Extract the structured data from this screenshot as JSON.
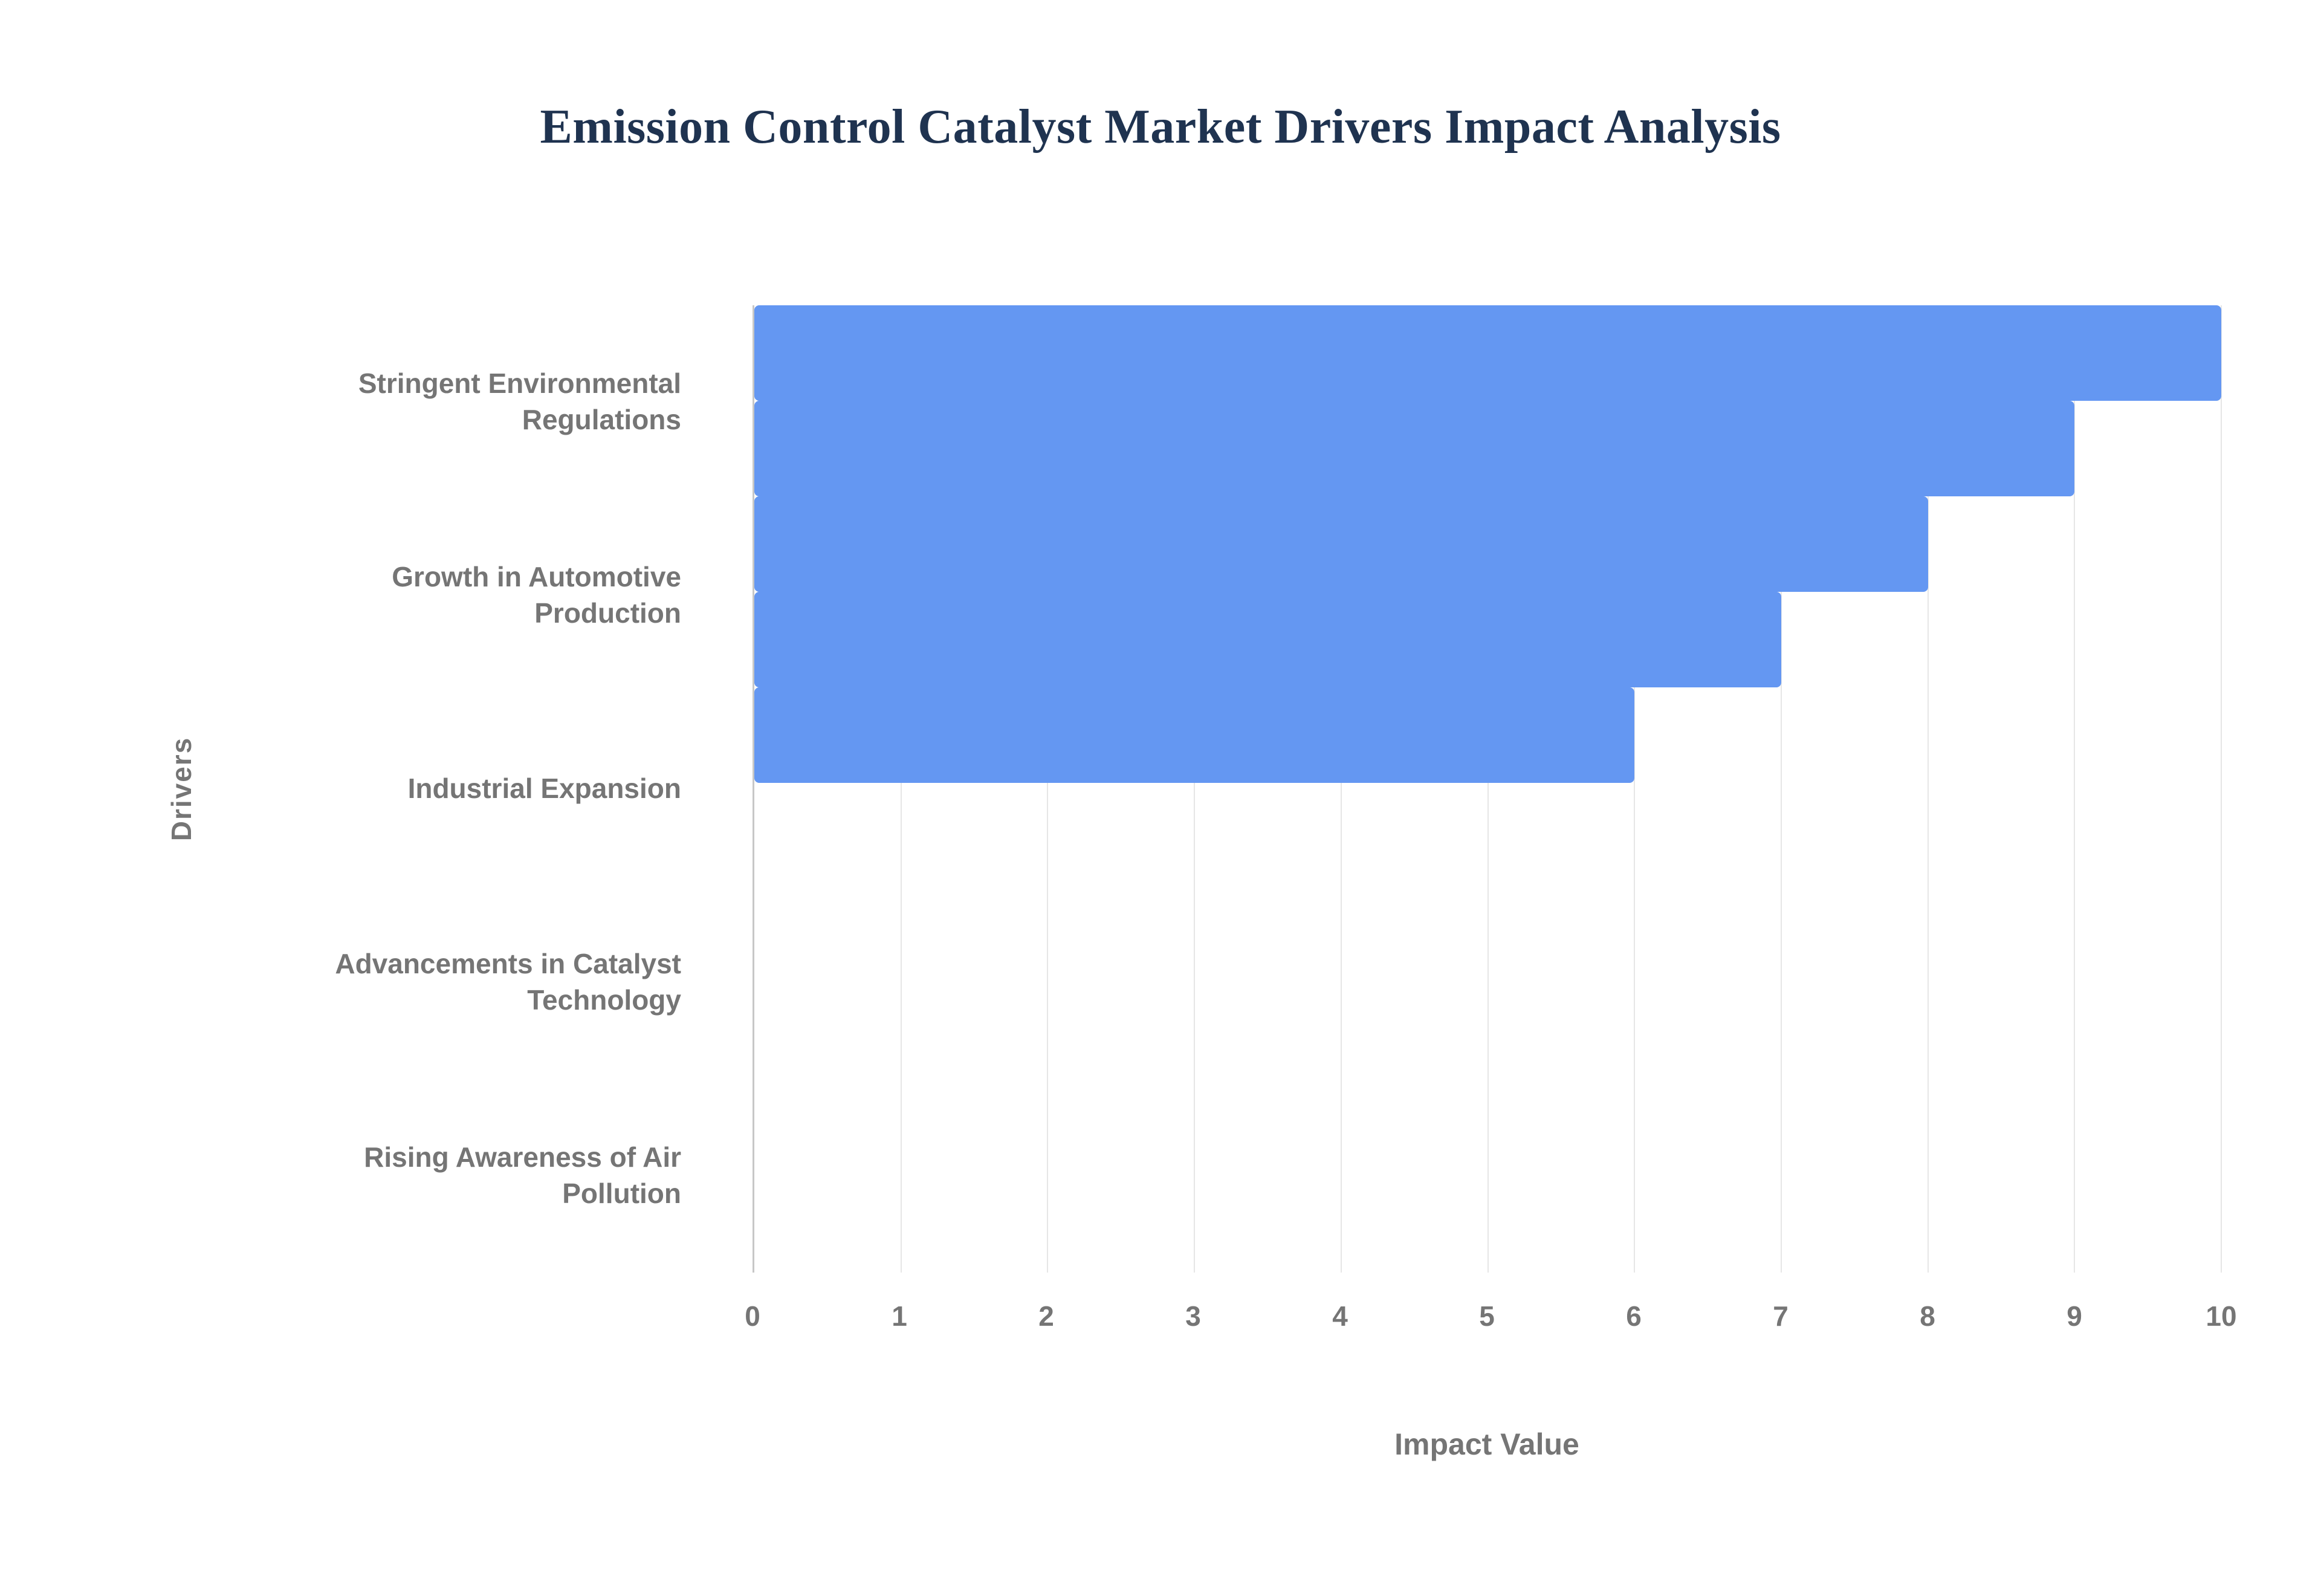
{
  "title": "Emission Control Catalyst Market Drivers Impact Analysis",
  "chart_data": {
    "type": "bar",
    "orientation": "horizontal",
    "title": "Emission Control Catalyst Market Drivers Impact Analysis",
    "categories": [
      "Stringent Environmental Regulations",
      "Growth in Automotive Production",
      "Industrial Expansion",
      "Advancements in Catalyst Technology",
      "Rising Awareness of Air Pollution"
    ],
    "values": [
      10,
      9,
      8,
      7,
      6
    ],
    "xlabel": "Impact Value",
    "ylabel": "Drivers",
    "xlim": [
      0,
      10
    ],
    "x_ticks": [
      0,
      1,
      2,
      3,
      4,
      5,
      6,
      7,
      8,
      9,
      10
    ],
    "grid": true,
    "legend": "none",
    "bar_color": "#6497f2",
    "gridline_color": "#e6e6e6",
    "axis_line_color": "#c7c7c7",
    "label_color": "#757575",
    "title_color": "#1f3350",
    "background_color": "#ffffff"
  }
}
